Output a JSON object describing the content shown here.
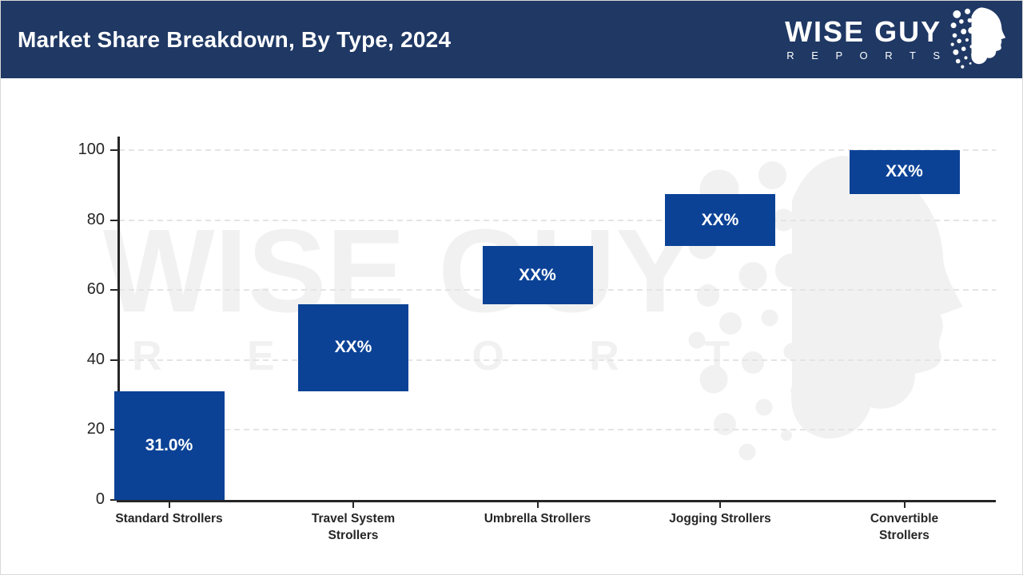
{
  "header": {
    "title": "Market Share Breakdown, By Type, 2024",
    "logo": {
      "name": "WISE GUY",
      "sub": "R E P O R T S"
    },
    "bg_color": "#1f3864",
    "text_color": "#ffffff"
  },
  "watermark": {
    "line1": "WISE GUY",
    "line2": "R E P O R T S",
    "color": "#f1f1f1"
  },
  "chart_data": {
    "type": "bar",
    "subtype": "waterfall-floating-segments",
    "title": "Market Share Breakdown, By Type, 2024",
    "categories": [
      "Standard Strollers",
      "Travel System\nStrollers",
      "Umbrella Strollers",
      "Jogging Strollers",
      "Convertible\nStrollers"
    ],
    "bars": [
      {
        "category": "Standard Strollers",
        "start": 0,
        "end": 31.0,
        "label": "31.0%"
      },
      {
        "category": "Travel System Strollers",
        "start": 31.0,
        "end": 56.0,
        "label": "XX%"
      },
      {
        "category": "Umbrella Strollers",
        "start": 56.0,
        "end": 72.5,
        "label": "XX%"
      },
      {
        "category": "Jogging Strollers",
        "start": 72.5,
        "end": 87.5,
        "label": "XX%"
      },
      {
        "category": "Convertible Strollers",
        "start": 87.5,
        "end": 100.0,
        "label": "XX%"
      }
    ],
    "yticks": [
      0,
      20,
      40,
      60,
      80,
      100
    ],
    "ylim": [
      0,
      104
    ],
    "xlabel": "",
    "ylabel": "",
    "grid": "horizontal-dashed",
    "legend": "none",
    "bar_color": "#0b4296",
    "bar_label_color": "#ffffff",
    "axis_color": "#262626",
    "grid_color": "#e4e4e4"
  }
}
